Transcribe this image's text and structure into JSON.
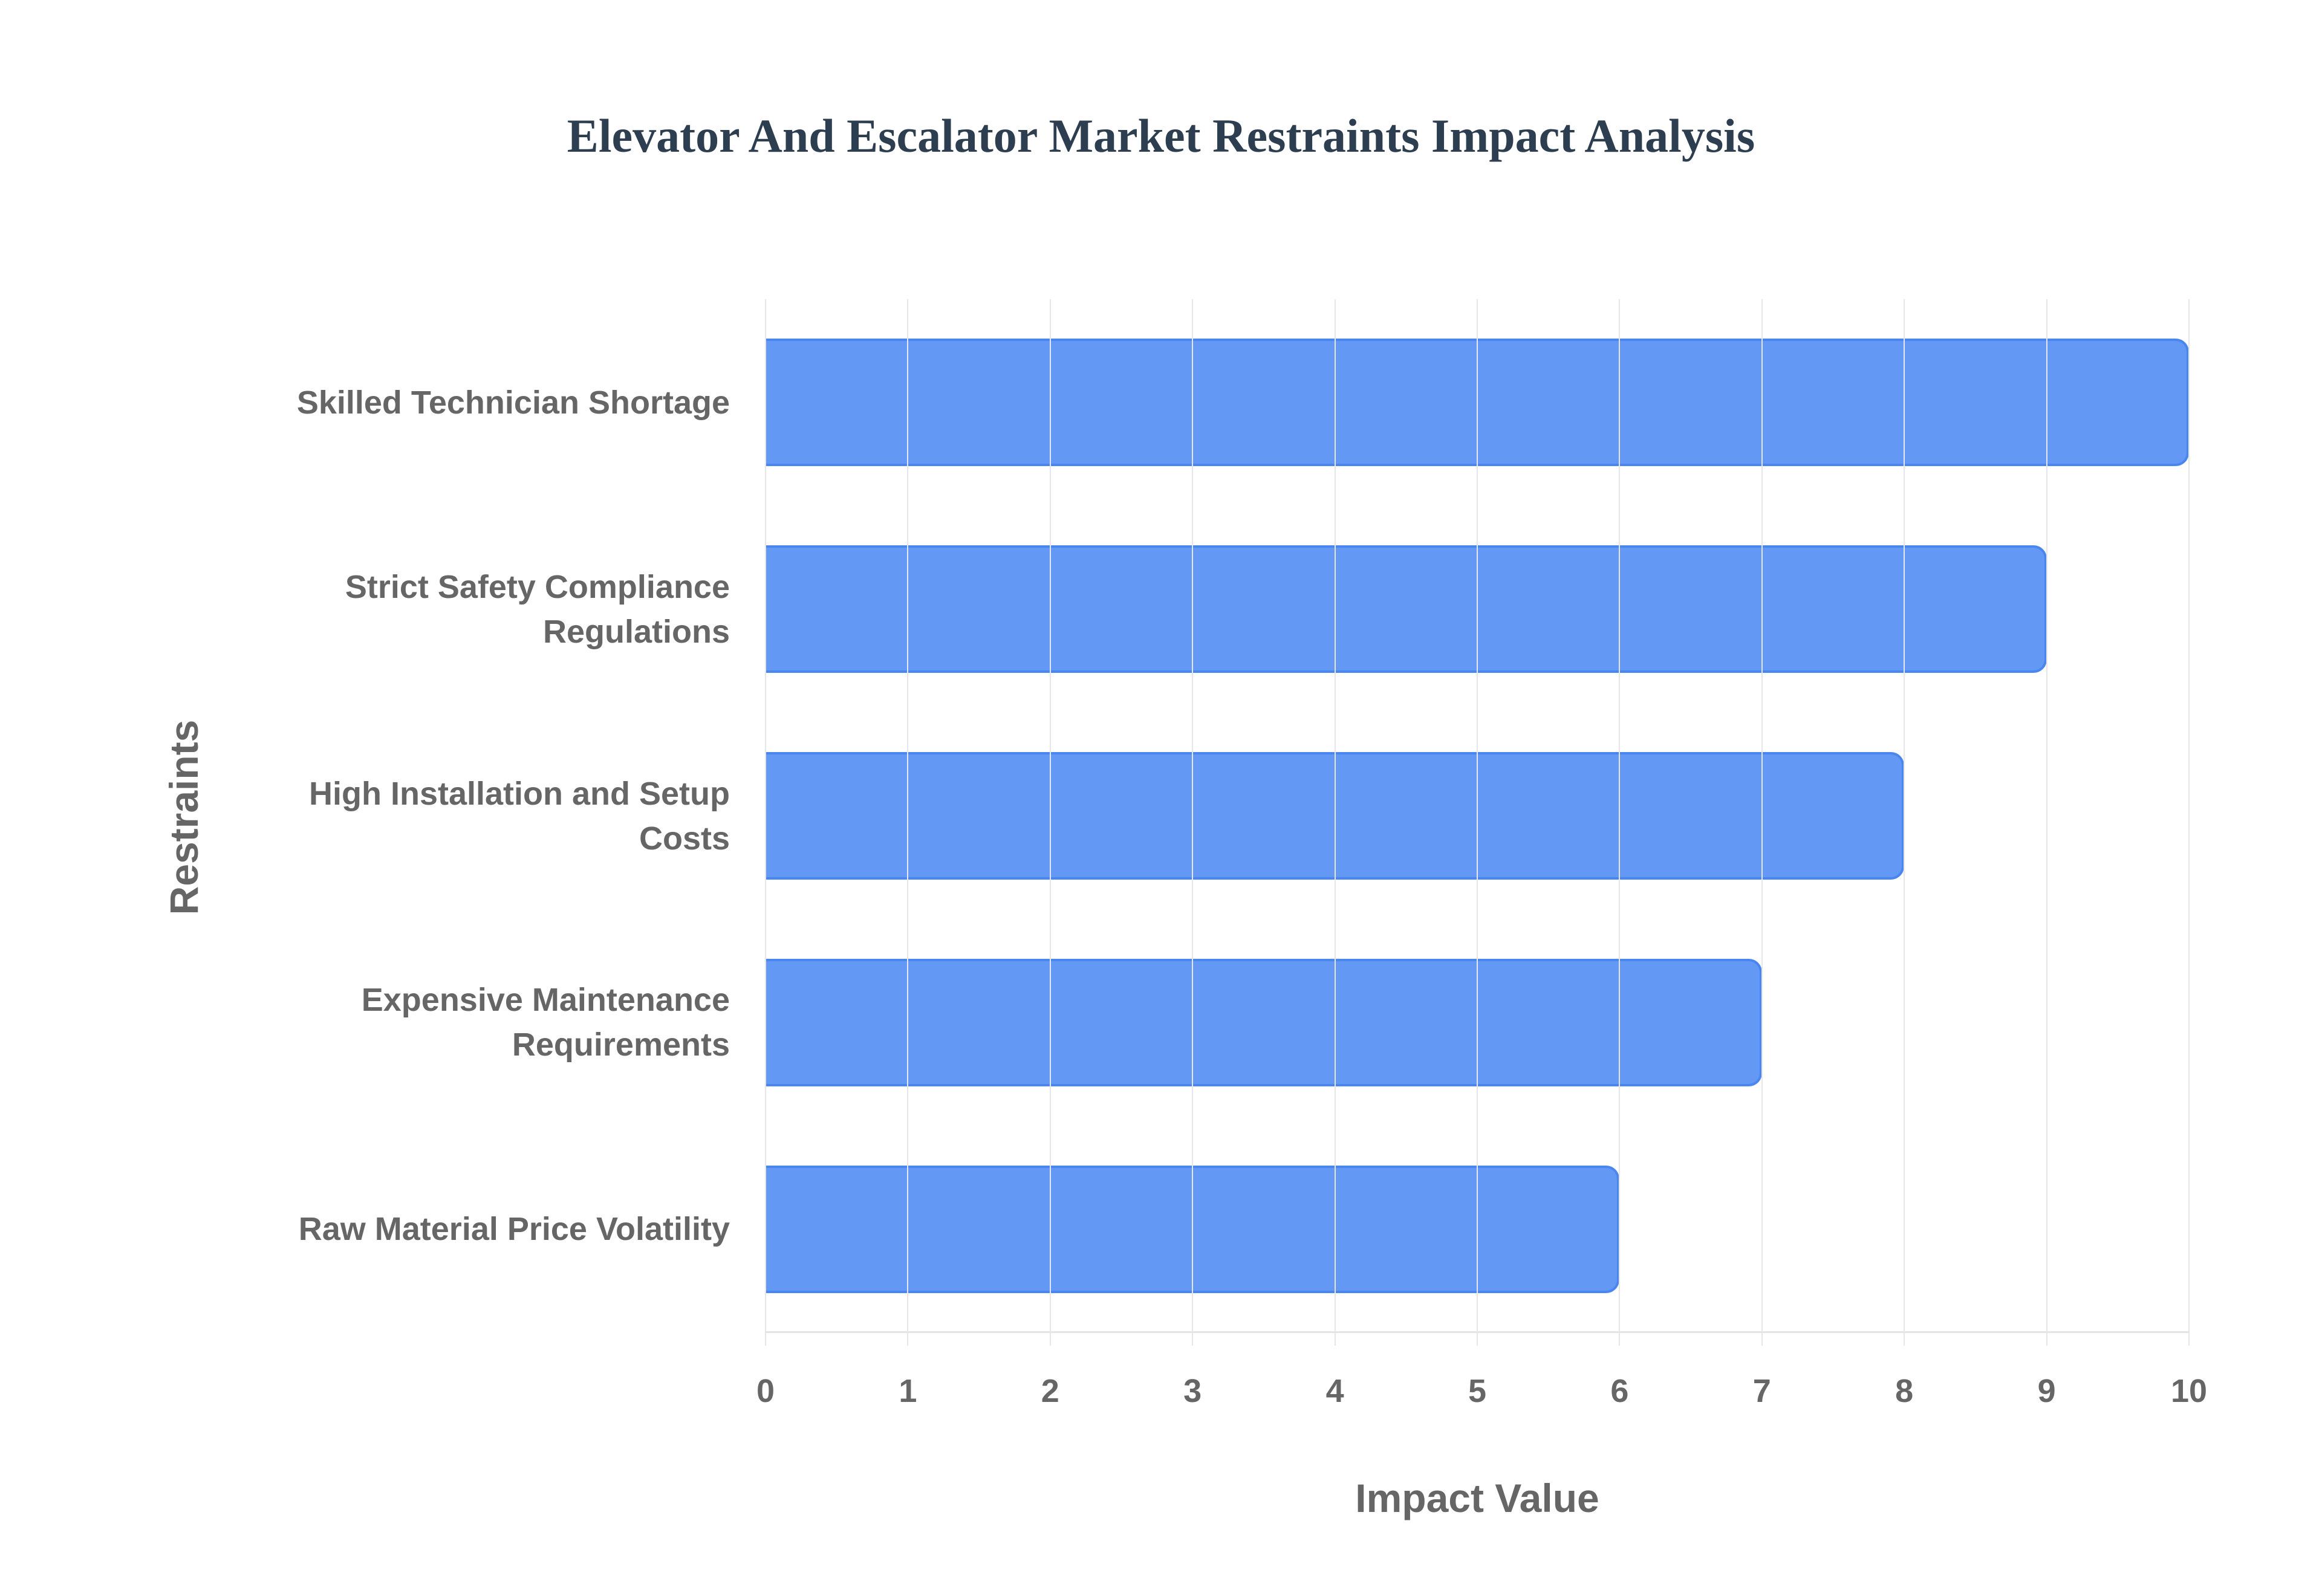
{
  "chart_data": {
    "type": "bar",
    "orientation": "horizontal",
    "title": "Elevator And Escalator Market Restraints Impact Analysis",
    "xlabel": "Impact Value",
    "ylabel": "Restraints",
    "xlim": [
      0,
      10
    ],
    "x_ticks": [
      "0",
      "1",
      "2",
      "3",
      "4",
      "5",
      "6",
      "7",
      "8",
      "9",
      "10"
    ],
    "grid": true,
    "legend": null,
    "categories": [
      "Skilled Technician Shortage",
      "Strict Safety Compliance Regulations",
      "High Installation and Setup Costs",
      "Expensive Maintenance Requirements",
      "Raw Material Price Volatility"
    ],
    "category_lines": [
      [
        "Skilled Technician Shortage"
      ],
      [
        "Strict Safety Compliance",
        "Regulations"
      ],
      [
        "High Installation and Setup",
        "Costs"
      ],
      [
        "Expensive Maintenance",
        "Requirements"
      ],
      [
        "Raw Material Price Volatility"
      ]
    ],
    "values": [
      10,
      9,
      8,
      7,
      6
    ],
    "bar_color": "#6398f5",
    "bar_border_color": "#4a86f0"
  }
}
